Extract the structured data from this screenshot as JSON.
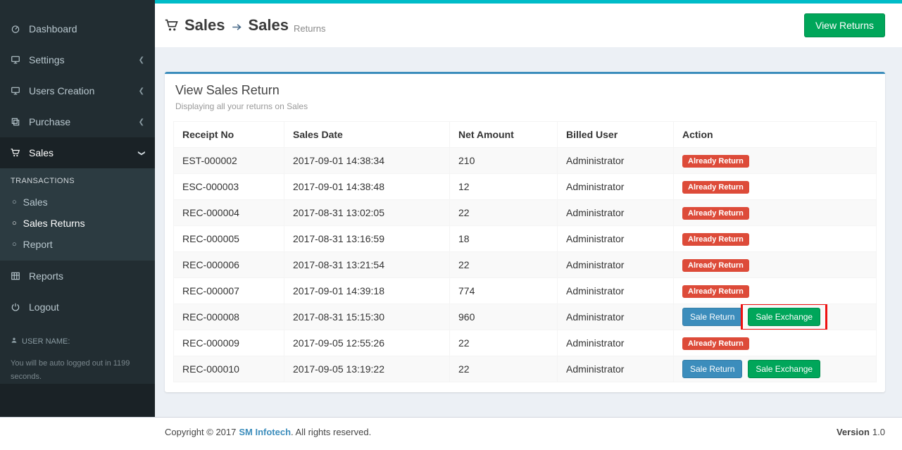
{
  "colors": {
    "accent_teal": "#00bcc8",
    "primary_blue": "#3c8dbc",
    "success_green": "#00a65a",
    "danger_red": "#dd4b39",
    "annotation_red": "#ee1111",
    "sidebar_bg": "#222d32"
  },
  "header": {
    "breadcrumb": {
      "section": "Sales",
      "page": "Sales",
      "sub": "Returns"
    },
    "view_returns_label": "View Returns"
  },
  "sidebar": {
    "items": [
      {
        "label": "Dashboard"
      },
      {
        "label": "Settings"
      },
      {
        "label": "Users Creation"
      },
      {
        "label": "Purchase"
      },
      {
        "label": "Sales"
      }
    ],
    "transactions_label": "TRANSACTIONS",
    "submenu": [
      "Sales",
      "Sales Returns",
      "Report"
    ],
    "reports_label": "Reports",
    "logout_label": "Logout",
    "user_label": "USER NAME:",
    "auto_logout_text": "You will be auto logged out in 1199 seconds."
  },
  "panel": {
    "title": "View Sales Return",
    "subtitle": "Displaying all your returns on Sales",
    "columns": [
      "Receipt No",
      "Sales Date",
      "Net Amount",
      "Billed User",
      "Action"
    ],
    "action_labels": {
      "already_return": "Already Return",
      "sale_return": "Sale Return",
      "sale_exchange": "Sale Exchange"
    },
    "rows": [
      {
        "receipt": "EST-000002",
        "date": "2017-09-01 14:38:34",
        "amount": "210",
        "user": "Administrator",
        "action": "already_return",
        "highlight": false
      },
      {
        "receipt": "ESC-000003",
        "date": "2017-09-01 14:38:48",
        "amount": "12",
        "user": "Administrator",
        "action": "already_return",
        "highlight": false
      },
      {
        "receipt": "REC-000004",
        "date": "2017-08-31 13:02:05",
        "amount": "22",
        "user": "Administrator",
        "action": "already_return",
        "highlight": false
      },
      {
        "receipt": "REC-000005",
        "date": "2017-08-31 13:16:59",
        "amount": "18",
        "user": "Administrator",
        "action": "already_return",
        "highlight": false
      },
      {
        "receipt": "REC-000006",
        "date": "2017-08-31 13:21:54",
        "amount": "22",
        "user": "Administrator",
        "action": "already_return",
        "highlight": false
      },
      {
        "receipt": "REC-000007",
        "date": "2017-09-01 14:39:18",
        "amount": "774",
        "user": "Administrator",
        "action": "already_return",
        "highlight": false
      },
      {
        "receipt": "REC-000008",
        "date": "2017-08-31 15:15:30",
        "amount": "960",
        "user": "Administrator",
        "action": "return_exchange",
        "highlight": true
      },
      {
        "receipt": "REC-000009",
        "date": "2017-09-05 12:55:26",
        "amount": "22",
        "user": "Administrator",
        "action": "already_return",
        "highlight": false
      },
      {
        "receipt": "REC-000010",
        "date": "2017-09-05 13:19:22",
        "amount": "22",
        "user": "Administrator",
        "action": "return_exchange",
        "highlight": false
      }
    ]
  },
  "footer": {
    "copyright_prefix": "Copyright © 2017",
    "brand": "SM Infotech",
    "copyright_suffix": ". All rights reserved.",
    "version_label": "Version",
    "version_value": "1.0"
  }
}
